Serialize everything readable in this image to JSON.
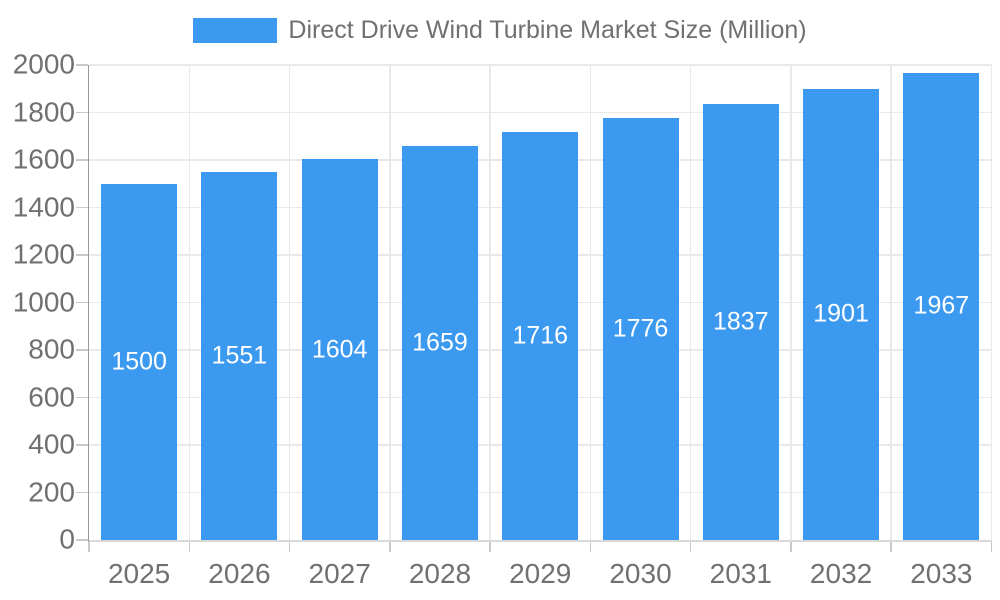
{
  "legend": {
    "label": "Direct Drive Wind Turbine Market Size (Million)"
  },
  "chart_data": {
    "type": "bar",
    "title": "Direct Drive Wind Turbine Market Size (Million)",
    "categories": [
      "2025",
      "2026",
      "2027",
      "2028",
      "2029",
      "2030",
      "2031",
      "2032",
      "2033"
    ],
    "values": [
      1500,
      1551,
      1604,
      1659,
      1716,
      1776,
      1837,
      1901,
      1967
    ],
    "xlabel": "",
    "ylabel": "",
    "ylim": [
      0,
      2000
    ],
    "ytick_step": 200,
    "yticks": [
      0,
      200,
      400,
      600,
      800,
      1000,
      1200,
      1400,
      1600,
      1800,
      2000
    ],
    "grid": true,
    "legend_position": "top-center",
    "bar_labels_visible": true,
    "colors": {
      "bar": "#3b9af0",
      "grid": "#e9e9e9",
      "axis": "#999999",
      "tick": "#c9c9c9",
      "bottom_axis": "#d9d9d9",
      "text": "#707070",
      "bar_label": "#ffffff"
    }
  }
}
